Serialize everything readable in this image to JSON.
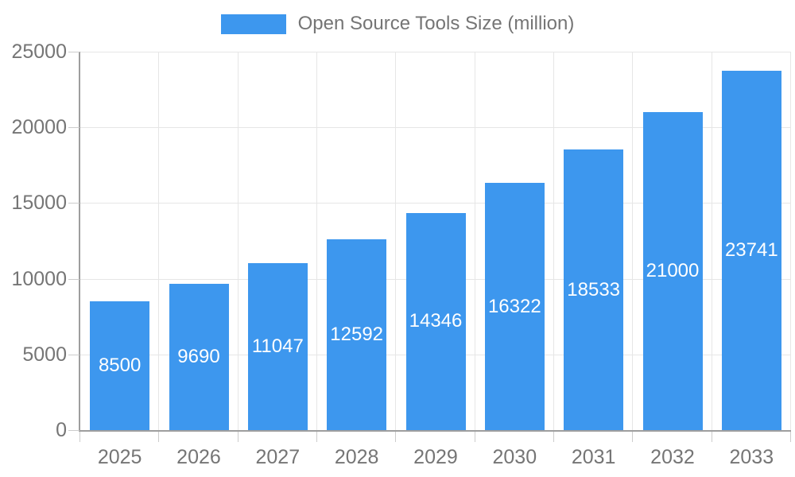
{
  "chart_data": {
    "type": "bar",
    "title": "Open Source Tools Size (million)",
    "legend": {
      "label": "Open Source Tools Size (million)",
      "position": "top"
    },
    "categories": [
      "2025",
      "2026",
      "2027",
      "2028",
      "2029",
      "2030",
      "2031",
      "2032",
      "2033"
    ],
    "values": [
      8500,
      9690,
      11047,
      12592,
      14346,
      16322,
      18533,
      21000,
      23741
    ],
    "xlabel": "",
    "ylabel": "",
    "ylim": [
      0,
      25000
    ],
    "ytick_interval": 5000,
    "ytick_labels": [
      "0",
      "5000",
      "10000",
      "15000",
      "20000",
      "25000"
    ],
    "grid": true,
    "data_labels_visible": true,
    "colors": {
      "bar": "#3d97ee",
      "bar_label_text": "#ffffff",
      "axis_text": "#757575",
      "grid_line": "#e6e6e6",
      "axis_line": "#9e9e9e",
      "tick_line": "#cccccc",
      "background": "#ffffff"
    }
  }
}
